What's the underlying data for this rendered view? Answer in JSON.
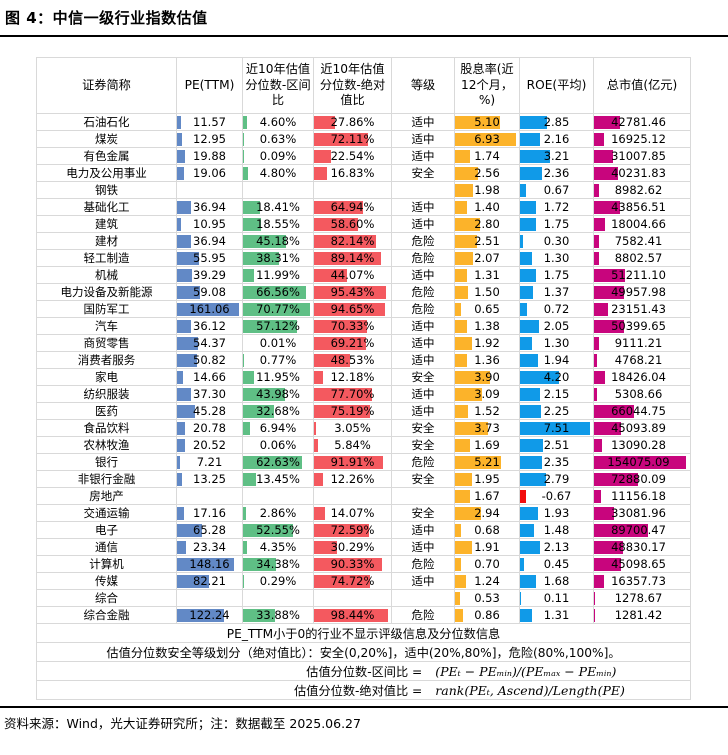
{
  "title": "图 4：中信一级行业指数估值",
  "source_note": "资料来源：Wind，光大证券研究所；注：数据截至 2025.06.27",
  "colors": {
    "pe_bar": "#6289c6",
    "range_bar": "#5fbf85",
    "abs_bar": "#f4595f",
    "dividend_bar": "#fcb32a",
    "roe_bar": "#109ae8",
    "roe_negative_bar": "#f20d0d",
    "mcap_bar": "#c8057d",
    "grid": "#d9d9d9"
  },
  "footnotes": {
    "line1": "PE_TTM小于0的行业不显示评级信息及分位数信息",
    "line2": "估值分位数安全等级划分（绝对值比）：安全(0,20%]，适中(20%,80%]，危险(80%,100%]。",
    "formula1_label": "估值分位数-区间比 =",
    "formula1_expr": "(PEₜ − PEₘᵢₙ)/(PEₘₐₓ − PEₘᵢₙ)",
    "formula2_label": "估值分位数-绝对值比 =",
    "formula2_expr": "rank(PEₜ, Ascend)/Length(PE)"
  },
  "chart_data": {
    "type": "table",
    "title": "图 4：中信一级行业指数估值",
    "columns": [
      "证券简称",
      "PE(TTM)",
      "近10年估值分位数-区间比",
      "近10年估值分位数-绝对值比",
      "等级",
      "股息率(近12个月，%)",
      "ROE(平均)",
      "总市值(亿元)"
    ],
    "rows": [
      [
        "石油石化",
        "11.57",
        "4.60%",
        "27.86%",
        "适中",
        "5.10",
        "2.85",
        "42781.46"
      ],
      [
        "煤炭",
        "12.95",
        "0.63%",
        "72.11%",
        "适中",
        "6.93",
        "2.16",
        "16925.12"
      ],
      [
        "有色金属",
        "19.88",
        "0.09%",
        "22.54%",
        "适中",
        "1.74",
        "3.21",
        "31007.85"
      ],
      [
        "电力及公用事业",
        "19.06",
        "4.80%",
        "16.83%",
        "安全",
        "2.56",
        "2.36",
        "40231.83"
      ],
      [
        "钢铁",
        "",
        "",
        "",
        "",
        "1.98",
        "0.67",
        "8982.62"
      ],
      [
        "基础化工",
        "36.94",
        "18.41%",
        "64.94%",
        "适中",
        "1.40",
        "1.72",
        "43856.51"
      ],
      [
        "建筑",
        "10.95",
        "18.55%",
        "58.60%",
        "适中",
        "2.80",
        "1.75",
        "18004.66"
      ],
      [
        "建材",
        "36.94",
        "45.18%",
        "82.14%",
        "危险",
        "2.51",
        "0.30",
        "7582.41"
      ],
      [
        "轻工制造",
        "55.95",
        "38.31%",
        "89.14%",
        "危险",
        "2.07",
        "1.30",
        "8802.57"
      ],
      [
        "机械",
        "39.29",
        "11.99%",
        "44.07%",
        "适中",
        "1.31",
        "1.75",
        "51211.10"
      ],
      [
        "电力设备及新能源",
        "59.08",
        "66.56%",
        "95.43%",
        "危险",
        "1.50",
        "1.37",
        "49957.98"
      ],
      [
        "国防军工",
        "161.06",
        "70.77%",
        "94.65%",
        "危险",
        "0.65",
        "0.72",
        "23151.43"
      ],
      [
        "汽车",
        "36.12",
        "57.12%",
        "70.33%",
        "适中",
        "1.38",
        "2.05",
        "50399.65"
      ],
      [
        "商贸零售",
        "54.37",
        "0.01%",
        "69.21%",
        "适中",
        "1.92",
        "1.30",
        "9111.21"
      ],
      [
        "消费者服务",
        "50.82",
        "0.77%",
        "48.53%",
        "适中",
        "1.36",
        "1.94",
        "4768.21"
      ],
      [
        "家电",
        "14.66",
        "11.95%",
        "12.18%",
        "安全",
        "3.90",
        "4.20",
        "18426.04"
      ],
      [
        "纺织服装",
        "37.30",
        "43.98%",
        "77.70%",
        "适中",
        "3.09",
        "2.15",
        "5308.66"
      ],
      [
        "医药",
        "45.28",
        "32.68%",
        "75.19%",
        "适中",
        "1.52",
        "2.25",
        "66044.75"
      ],
      [
        "食品饮料",
        "20.78",
        "6.94%",
        "3.05%",
        "安全",
        "3.73",
        "7.51",
        "45093.89"
      ],
      [
        "农林牧渔",
        "20.52",
        "0.06%",
        "5.84%",
        "安全",
        "1.69",
        "2.51",
        "13090.28"
      ],
      [
        "银行",
        "7.21",
        "62.63%",
        "91.91%",
        "危险",
        "5.21",
        "2.35",
        "154075.09"
      ],
      [
        "非银行金融",
        "13.25",
        "13.45%",
        "12.26%",
        "安全",
        "1.95",
        "2.79",
        "72880.09"
      ],
      [
        "房地产",
        "",
        "",
        "",
        "",
        "1.67",
        "-0.67",
        "11156.18"
      ],
      [
        "交通运输",
        "17.16",
        "2.86%",
        "14.07%",
        "安全",
        "2.94",
        "1.93",
        "33081.96"
      ],
      [
        "电子",
        "65.28",
        "52.55%",
        "72.59%",
        "适中",
        "0.68",
        "1.48",
        "89700.47"
      ],
      [
        "通信",
        "23.34",
        "4.35%",
        "30.29%",
        "适中",
        "1.91",
        "2.13",
        "48830.17"
      ],
      [
        "计算机",
        "148.16",
        "34.38%",
        "90.33%",
        "危险",
        "0.70",
        "0.45",
        "45098.65"
      ],
      [
        "传媒",
        "82.21",
        "0.29%",
        "74.72%",
        "适中",
        "1.24",
        "1.68",
        "16357.73"
      ],
      [
        "综合",
        "",
        "",
        "",
        "",
        "0.53",
        "0.11",
        "1278.67"
      ],
      [
        "综合金融",
        "122.24",
        "33.88%",
        "98.44%",
        "危险",
        "0.86",
        "1.31",
        "1281.42"
      ]
    ]
  }
}
